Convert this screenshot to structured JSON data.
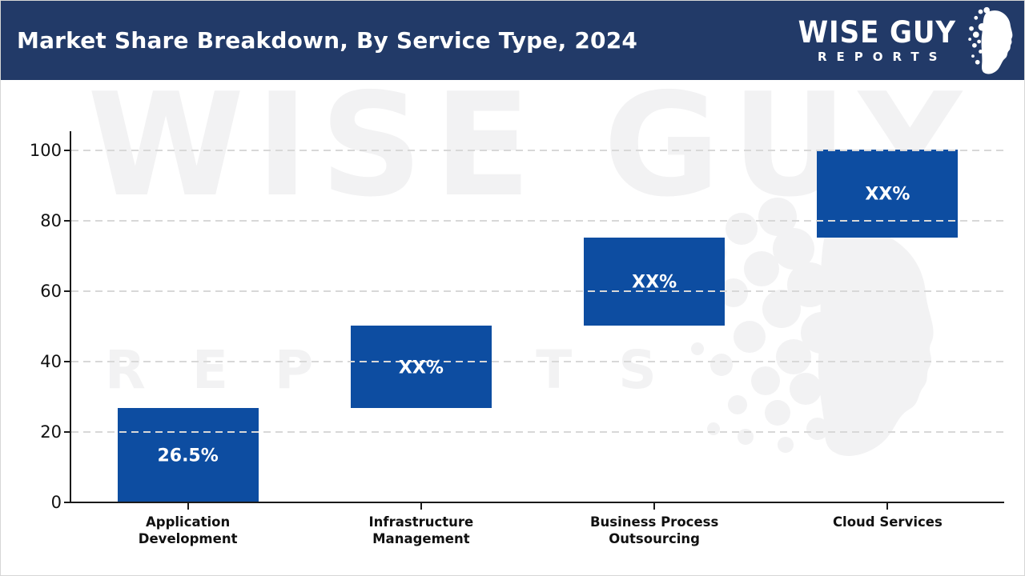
{
  "header": {
    "title": "Market Share Breakdown, By Service Type, 2024",
    "logo": {
      "line1": "WISE GUY",
      "line2": "REPORTS"
    }
  },
  "watermark": {
    "line1": "WISE GUY",
    "line2": "REPORTS"
  },
  "colors": {
    "header_bg": "#223a68",
    "bar": "#0d4da1",
    "bar_label_text": "#ffffff",
    "grid": "#d8d8d8",
    "axis": "#1a1a1a",
    "watermark": "#f2f2f3",
    "title_text": "#ffffff"
  },
  "chart_data": {
    "type": "bar",
    "subtype": "waterfall",
    "title": "Market Share Breakdown, By Service Type, 2024",
    "categories": [
      "Application Development",
      "Infrastructure Management",
      "Business Process Outsourcing",
      "Cloud Services"
    ],
    "xlabel_lines": [
      [
        "Application",
        "Development"
      ],
      [
        "Infrastructure",
        "Management"
      ],
      [
        "Business Process",
        "Outsourcing"
      ],
      [
        "Cloud Services"
      ]
    ],
    "bars": [
      {
        "category": "Application Development",
        "start": 0,
        "end": 26.5,
        "label": "26.5%"
      },
      {
        "category": "Infrastructure Management",
        "start": 26.5,
        "end": 50,
        "label": "XX%"
      },
      {
        "category": "Business Process Outsourcing",
        "start": 50,
        "end": 75,
        "label": "XX%"
      },
      {
        "category": "Cloud Services",
        "start": 75,
        "end": 100,
        "label": "XX%"
      }
    ],
    "yticks": [
      0,
      20,
      40,
      60,
      80,
      100
    ],
    "ylim": [
      0,
      105
    ],
    "xlabel": "",
    "ylabel": "",
    "grid": "horizontal dashed",
    "legend": false
  }
}
